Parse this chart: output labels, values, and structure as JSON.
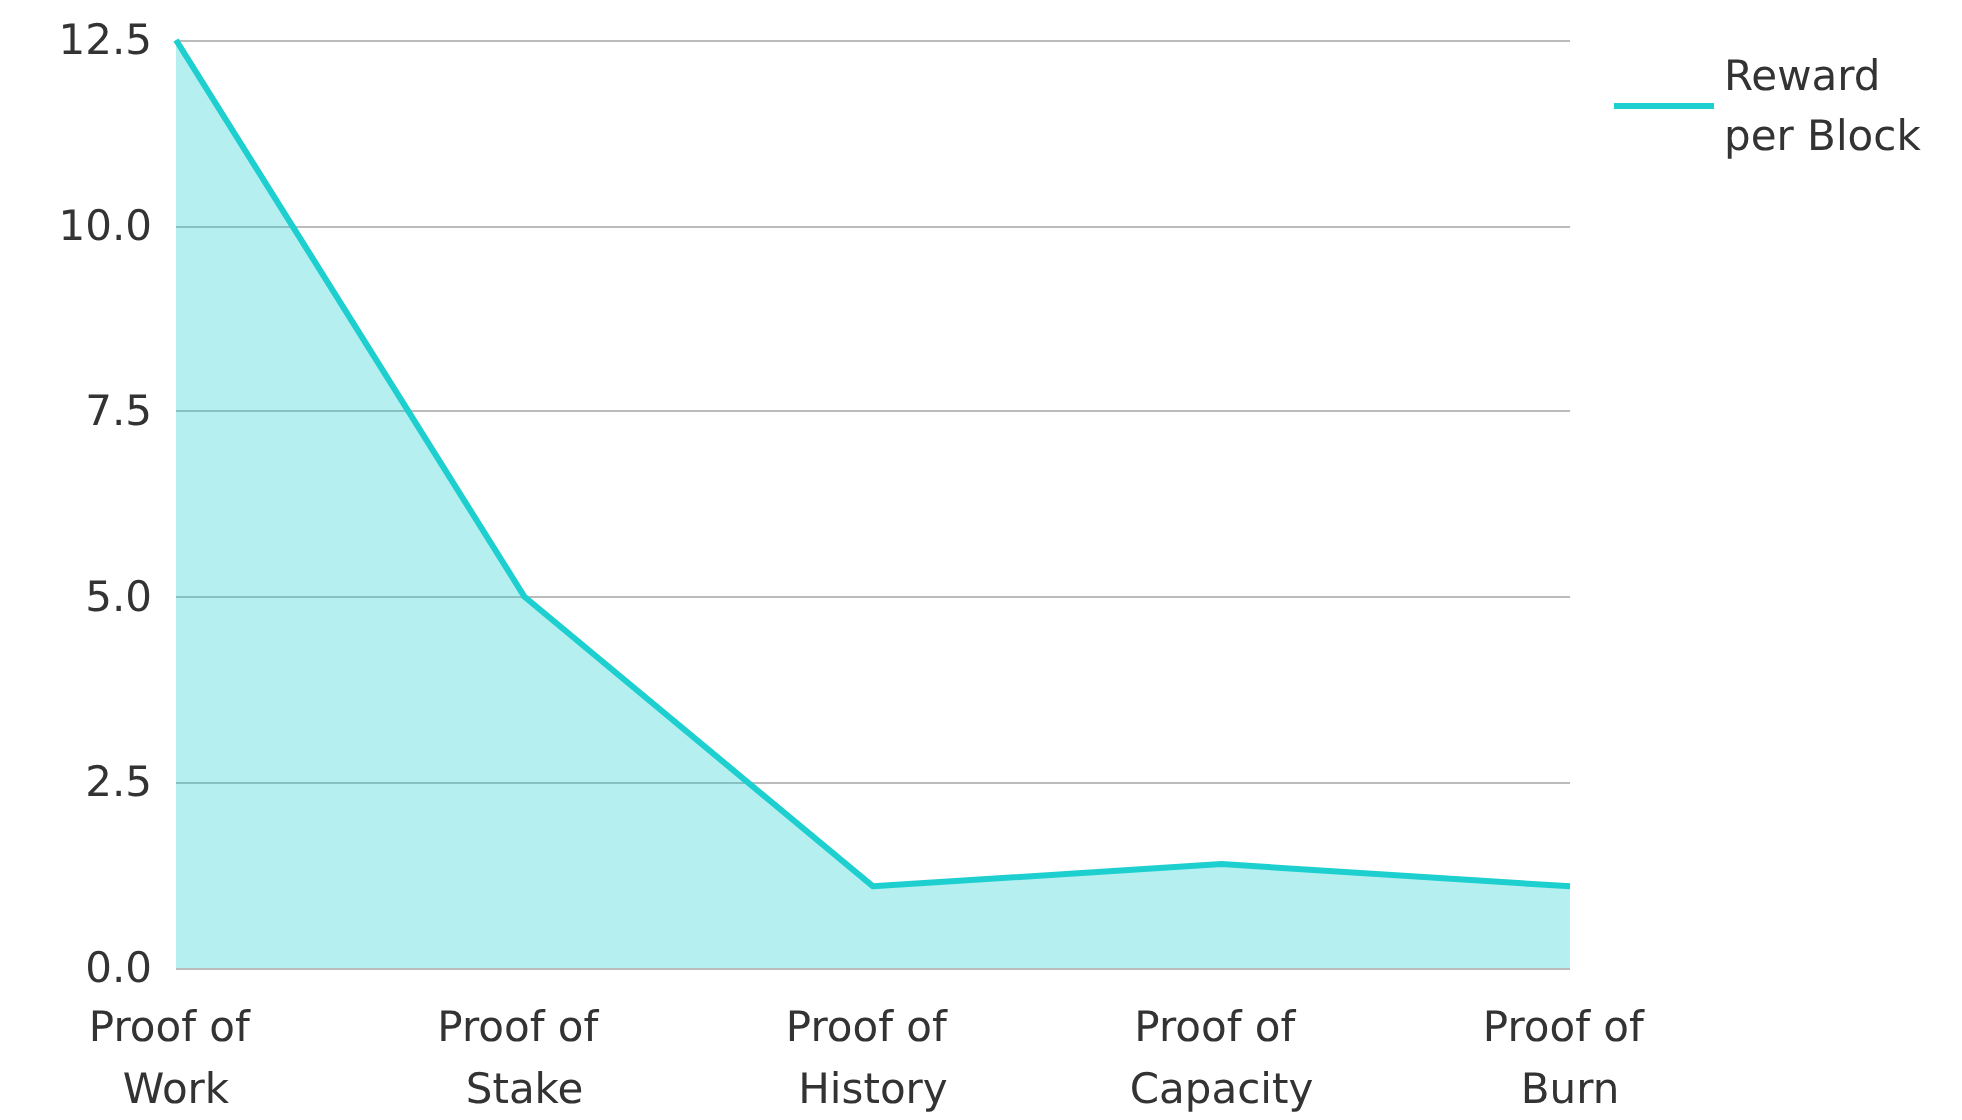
{
  "chart_data": {
    "type": "area",
    "categories": [
      "Proof of Work",
      "Proof of Stake",
      "Proof of History",
      "Proof of Capacity",
      "Proof of Burn"
    ],
    "series": [
      {
        "name": "Reward per Block",
        "color": "#1ecfcf",
        "values": [
          12.5,
          5.0,
          1.1,
          1.4,
          1.1
        ]
      }
    ],
    "ylim": [
      0,
      12.5
    ],
    "yticks": [
      {
        "value": 0,
        "label": "0.0"
      },
      {
        "value": 2.5,
        "label": "2.5"
      },
      {
        "value": 5,
        "label": "5.0"
      },
      {
        "value": 7.5,
        "label": "7.5"
      },
      {
        "value": 10,
        "label": "10.0"
      },
      {
        "value": 12.5,
        "label": "12.5"
      }
    ],
    "grid": "y",
    "legend": "top right"
  }
}
